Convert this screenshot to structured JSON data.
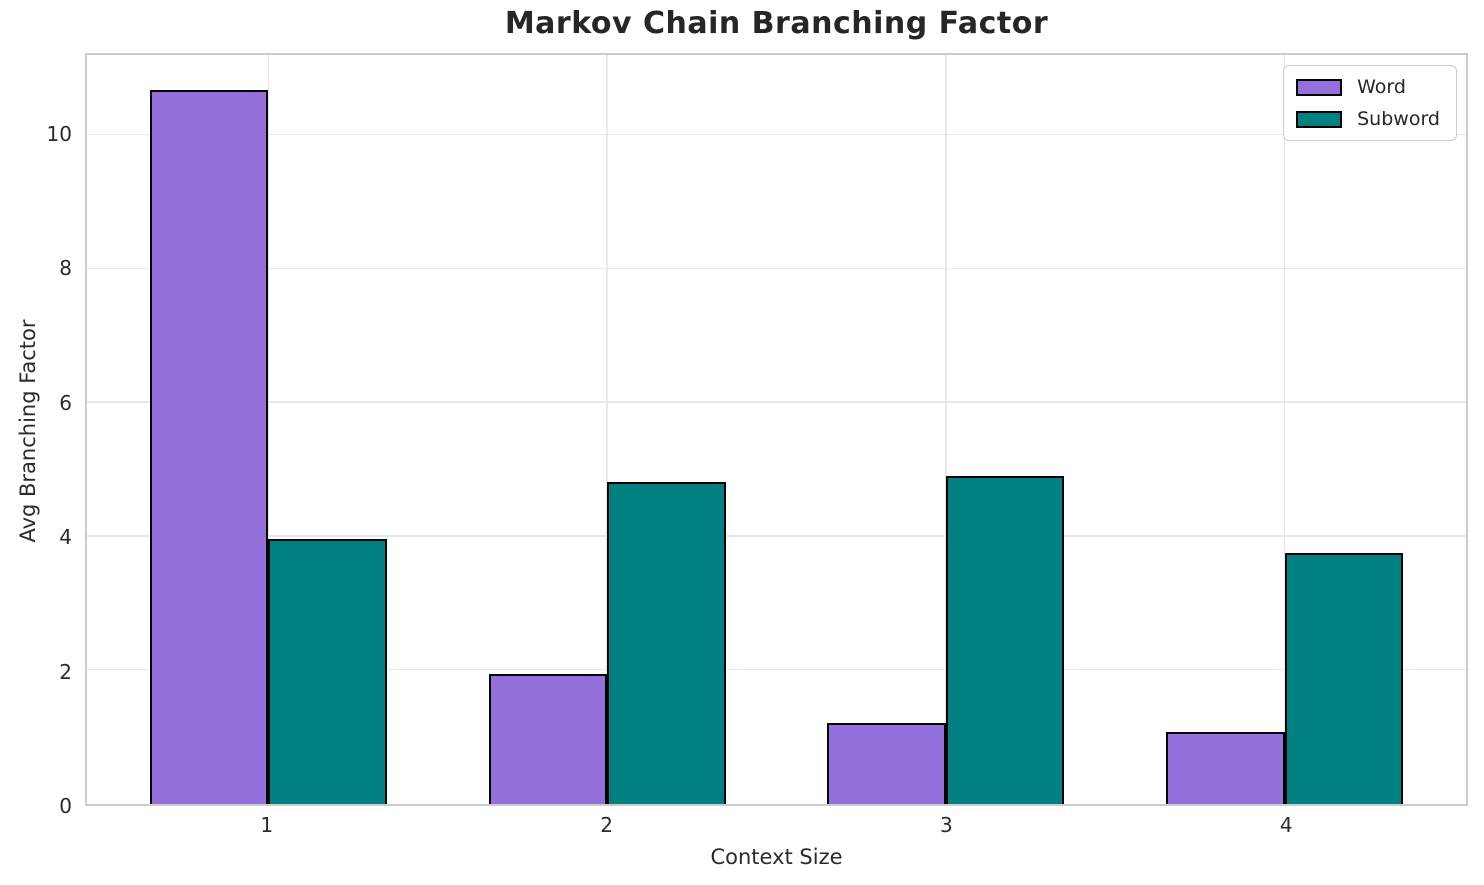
{
  "chart_data": {
    "type": "bar",
    "title": "Markov Chain Branching Factor",
    "xlabel": "Context Size",
    "ylabel": "Avg Branching Factor",
    "categories": [
      "1",
      "2",
      "3",
      "4"
    ],
    "series": [
      {
        "name": "Word",
        "color": "#9370DB",
        "values": [
          10.67,
          1.94,
          1.21,
          1.07
        ]
      },
      {
        "name": "Subword",
        "color": "#008080",
        "values": [
          3.96,
          4.82,
          4.91,
          3.76
        ]
      }
    ],
    "ylim": [
      0,
      11.2
    ],
    "yticks": [
      0,
      2,
      4,
      6,
      8,
      10
    ],
    "bar_width": 0.35,
    "bar_edge_color": "#000000",
    "grid": true,
    "legend_position": "upper right",
    "style_colors": {
      "grid": "#e8e8e8",
      "spine": "#cccccc",
      "text": "#2b2b2b",
      "title": "#262626",
      "background": "#ffffff"
    }
  }
}
